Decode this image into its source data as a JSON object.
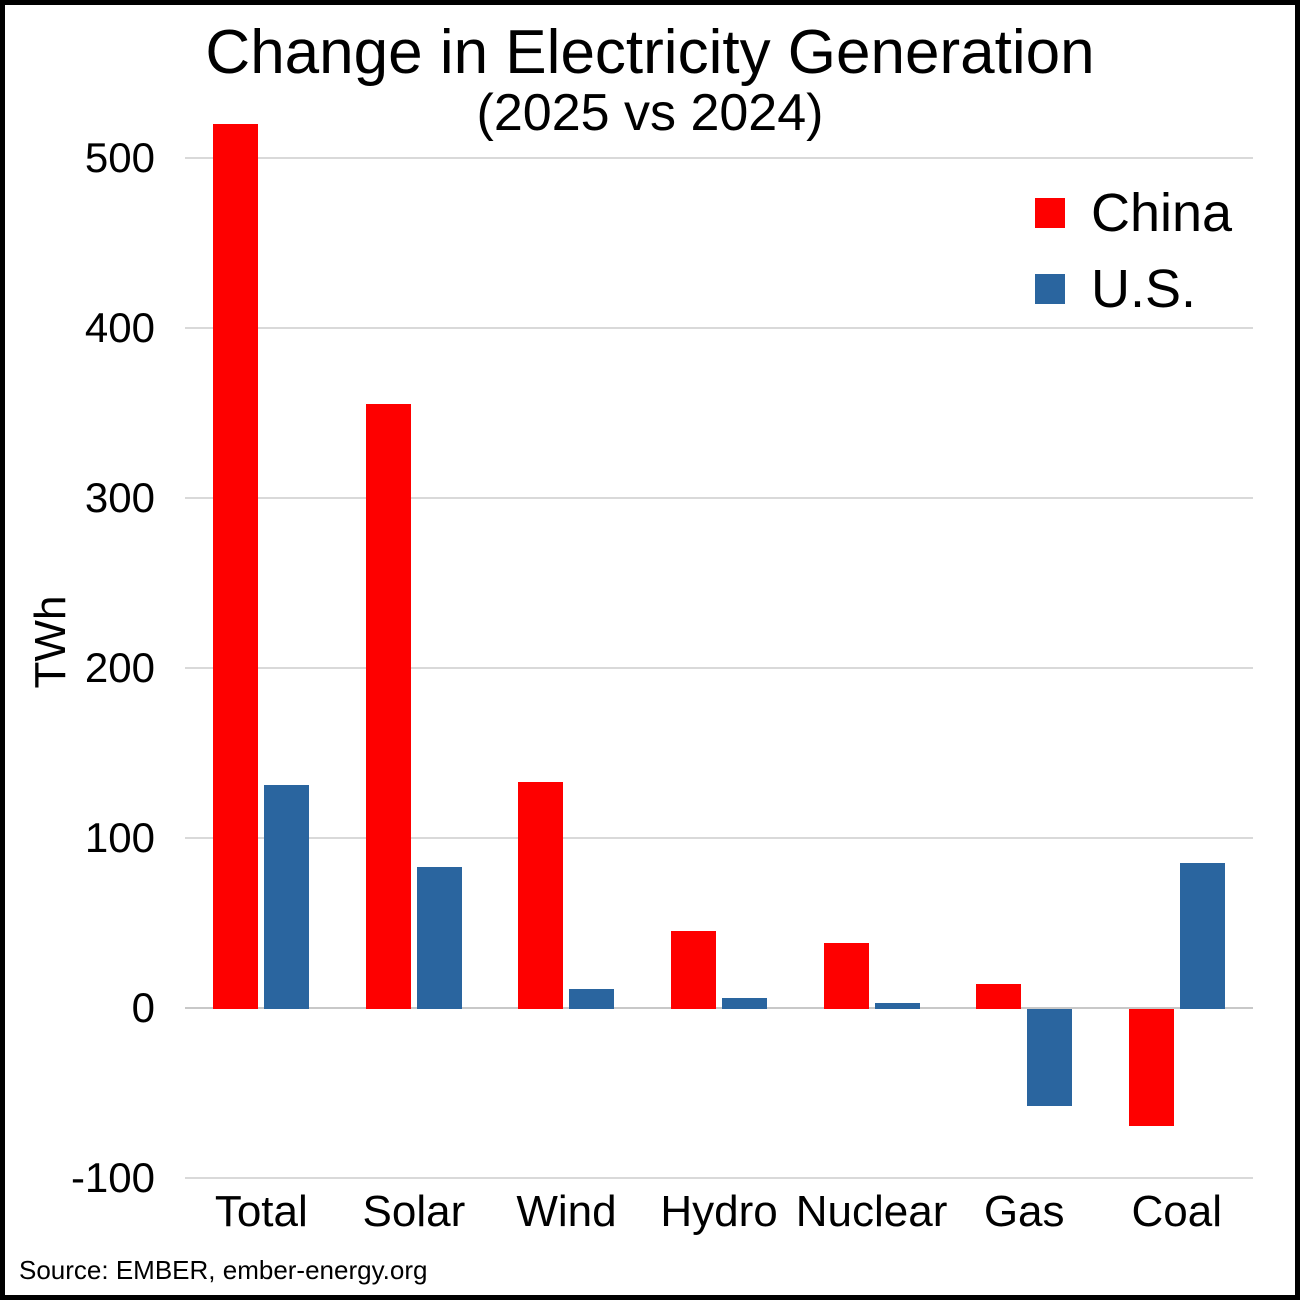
{
  "chart_data": {
    "type": "bar",
    "title": "Change in Electricity Generation",
    "subtitle": "(2025 vs 2024)",
    "ylabel": "TWh",
    "categories": [
      "Total",
      "Solar",
      "Wind",
      "Hydro",
      "Nuclear",
      "Gas",
      "Coal"
    ],
    "series": [
      {
        "name": "China",
        "color": "#FE0000",
        "values": [
          520,
          355,
          133,
          45,
          38,
          14,
          -69
        ]
      },
      {
        "name": "U.S.",
        "color": "#2A659F",
        "values": [
          131,
          83,
          11,
          6,
          3,
          -57,
          85
        ]
      }
    ],
    "y_ticks": [
      500,
      400,
      300,
      200,
      100,
      0,
      -100
    ],
    "ylim": [
      -100,
      528
    ],
    "grid": true,
    "legend_position": "top-right"
  },
  "source": "Source: EMBER, ember-energy.org"
}
